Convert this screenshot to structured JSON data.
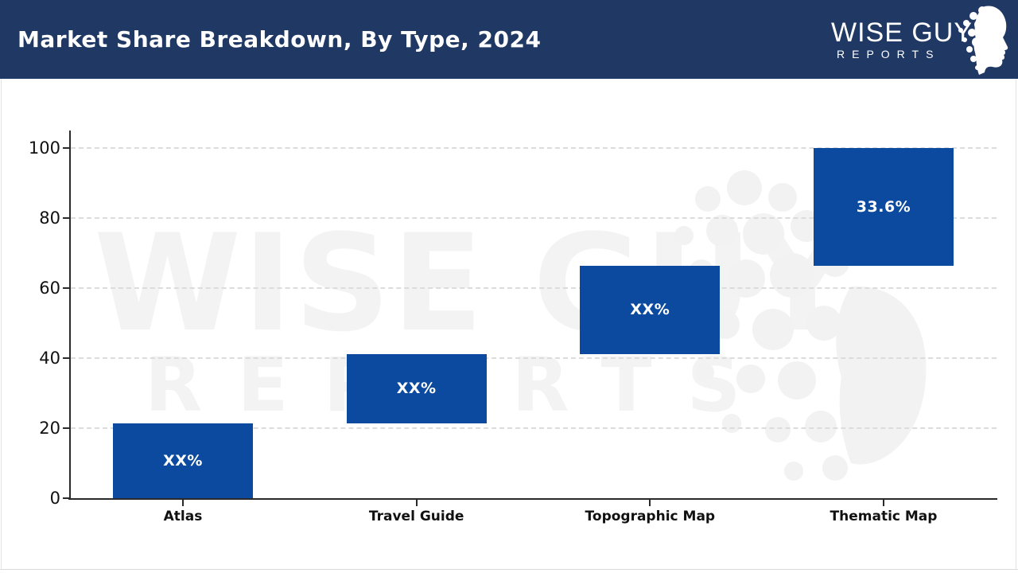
{
  "header": {
    "title": "Market Share Breakdown, By Type, 2024",
    "logo": {
      "line1": "WISE GUY",
      "line2": "REPORTS"
    }
  },
  "watermark": {
    "line1": "WISE GUY",
    "line2": "REPORTS"
  },
  "chart_data": {
    "type": "bar",
    "subtype": "waterfall-floating-bars",
    "title": "Market Share Breakdown, By Type, 2024",
    "categories": [
      "Atlas",
      "Travel Guide",
      "Topographic Map",
      "Thematic Map"
    ],
    "series": [
      {
        "name": "Market Share %",
        "segments": [
          {
            "category": "Atlas",
            "start": 0,
            "end": 21.4,
            "label": "XX%"
          },
          {
            "category": "Travel Guide",
            "start": 21.4,
            "end": 41.2,
            "label": "XX%"
          },
          {
            "category": "Topographic Map",
            "start": 41.2,
            "end": 66.4,
            "label": "XX%"
          },
          {
            "category": "Thematic Map",
            "start": 66.4,
            "end": 100,
            "label": "33.6%"
          }
        ]
      }
    ],
    "xlabel": "",
    "ylabel": "",
    "ylim": [
      0,
      100
    ],
    "yticks": [
      0,
      20,
      40,
      60,
      80,
      100
    ],
    "grid": "horizontal-dashed",
    "legend": "none",
    "bar_color": "#0b4a9f",
    "bar_label_color": "#ffffff",
    "header_color": "#203864"
  }
}
